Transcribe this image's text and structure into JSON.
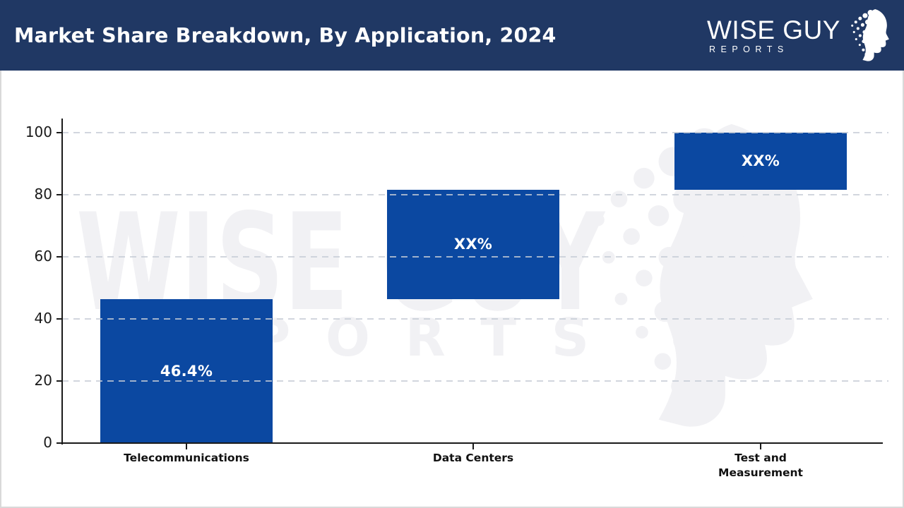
{
  "header": {
    "title": "Market Share Breakdown, By Application, 2024",
    "logo": {
      "line1": "WISE GUY",
      "line2": "REPORTS",
      "icon": "dotted-head-profile-icon"
    }
  },
  "watermark": {
    "line1": "WISE GUY",
    "line2": "R E P O R T S",
    "icon": "dotted-head-profile-icon"
  },
  "colors": {
    "header_bg": "#203864",
    "bar": "#0b48a1",
    "bar_label": "#ffffff",
    "grid": "#c6ccd6",
    "axis": "#1a1a1a",
    "watermark": "#f1f1f4"
  },
  "chart_data": {
    "type": "bar",
    "variant": "floating segmented bars (cumulative market-share breakdown)",
    "title": "Market Share Breakdown, By Application, 2024",
    "categories": [
      "Telecommunications",
      "Data Centers",
      "Test and Measurement"
    ],
    "category_labels": [
      "Telecommunications",
      "Data Centers",
      "Test and\nMeasurement"
    ],
    "bars": [
      {
        "category": "Telecommunications",
        "label": "46.4%",
        "start": 0,
        "end": 46.4
      },
      {
        "category": "Data Centers",
        "label": "XX%",
        "start": 46.4,
        "end": 81.6
      },
      {
        "category": "Test and Measurement",
        "label": "XX%",
        "start": 81.6,
        "end": 100
      }
    ],
    "ylim": [
      0,
      100
    ],
    "yticks": [
      0,
      20,
      40,
      60,
      80,
      100
    ],
    "grid": "dashed horizontal gridlines",
    "legend": "none",
    "xlabel": "",
    "ylabel": ""
  }
}
